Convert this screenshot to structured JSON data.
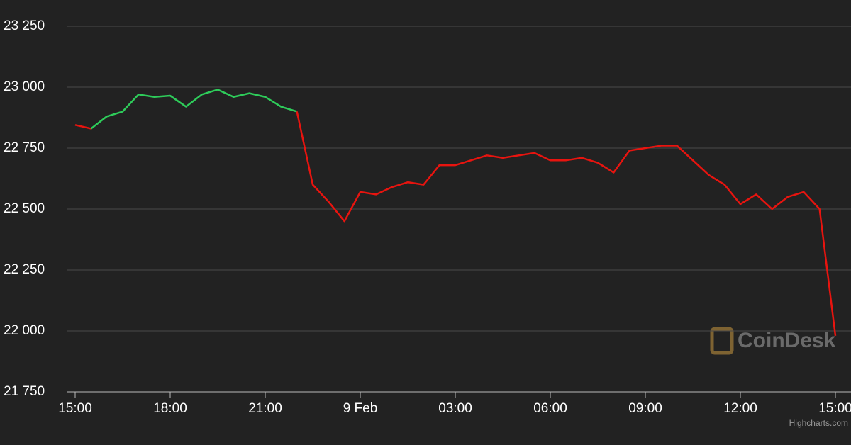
{
  "chart_data": {
    "type": "line",
    "categories": [
      "15:00",
      null,
      null,
      null,
      null,
      null,
      "18:00",
      null,
      null,
      null,
      null,
      null,
      "21:00",
      null,
      null,
      null,
      null,
      null,
      "9 Feb",
      null,
      null,
      null,
      null,
      null,
      "03:00",
      null,
      null,
      null,
      null,
      null,
      "06:00",
      null,
      null,
      null,
      null,
      null,
      "09:00",
      null,
      null,
      null,
      null,
      null,
      "12:00",
      null,
      null,
      null,
      null,
      null,
      "15:00"
    ],
    "values": [
      22845,
      22830,
      22880,
      22900,
      22970,
      22960,
      22965,
      22920,
      22970,
      22990,
      22960,
      22975,
      22960,
      22920,
      22900,
      22600,
      22530,
      22450,
      22570,
      22560,
      22590,
      22610,
      22600,
      22680,
      22680,
      22700,
      22720,
      22710,
      22720,
      22730,
      22700,
      22700,
      22710,
      22690,
      22650,
      22740,
      22750,
      22760,
      22760,
      22700,
      22640,
      22600,
      22520,
      22560,
      22500,
      22550,
      22570,
      22500,
      21980
    ],
    "color": "#2ecc5a",
    "negative_color": "#e8140f",
    "ylim": [
      21750,
      23250
    ],
    "yticks": [
      {
        "value": 21750,
        "label": "21 750"
      },
      {
        "value": 22000,
        "label": "22 000"
      },
      {
        "value": 22250,
        "label": "22 250"
      },
      {
        "value": 22500,
        "label": "22 500"
      },
      {
        "value": 22750,
        "label": "22 750"
      },
      {
        "value": 23000,
        "label": "23 000"
      },
      {
        "value": 23250,
        "label": "23 250"
      }
    ],
    "grid": true,
    "watermark": "CoinDesk",
    "credits": "Highcharts.com"
  }
}
